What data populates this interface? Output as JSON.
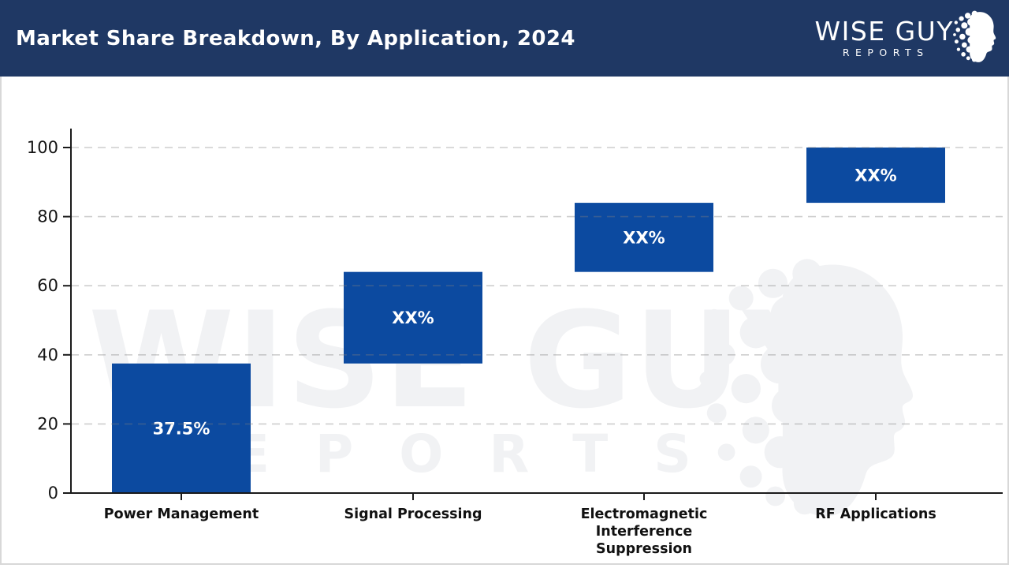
{
  "header": {
    "title": "Market Share Breakdown, By Application, 2024",
    "background": "#1f3864",
    "logo": {
      "line1": "WISE GUY",
      "line2": "REPORTS"
    }
  },
  "watermark": {
    "line1": "WISE GUY",
    "line2": "REPORTS"
  },
  "chart_data": {
    "type": "bar",
    "variant": "floating segment bars (waterfall-style market share breakdown)",
    "title": "Market Share Breakdown, By Application, 2024",
    "categories": [
      "Power Management",
      "Signal Processing",
      "Electromagnetic\nInterference\nSuppression",
      "RF Applications"
    ],
    "bars": [
      {
        "category": "Power Management",
        "start": 0,
        "end": 37.5,
        "label": "37.5%"
      },
      {
        "category": "Signal Processing",
        "start": 37.5,
        "end": 64,
        "label": "XX%"
      },
      {
        "category": "Electromagnetic Interference Suppression",
        "start": 64,
        "end": 84,
        "label": "XX%"
      },
      {
        "category": "RF Applications",
        "start": 84,
        "end": 100,
        "label": "XX%"
      }
    ],
    "xlabel": "",
    "ylabel": "",
    "ylim": [
      0,
      105
    ],
    "yticks": [
      0,
      20,
      40,
      60,
      80,
      100
    ],
    "grid": "horizontal dashed lines drawn above bars",
    "legend": "none",
    "colors": {
      "bar": "#0c4aa0",
      "bar_label": "#ffffff",
      "axis": "#1a1a1a",
      "tick_label": "#151515",
      "grid": "rgba(125,125,125,0.38)",
      "watermark": "#f1f2f4"
    }
  }
}
